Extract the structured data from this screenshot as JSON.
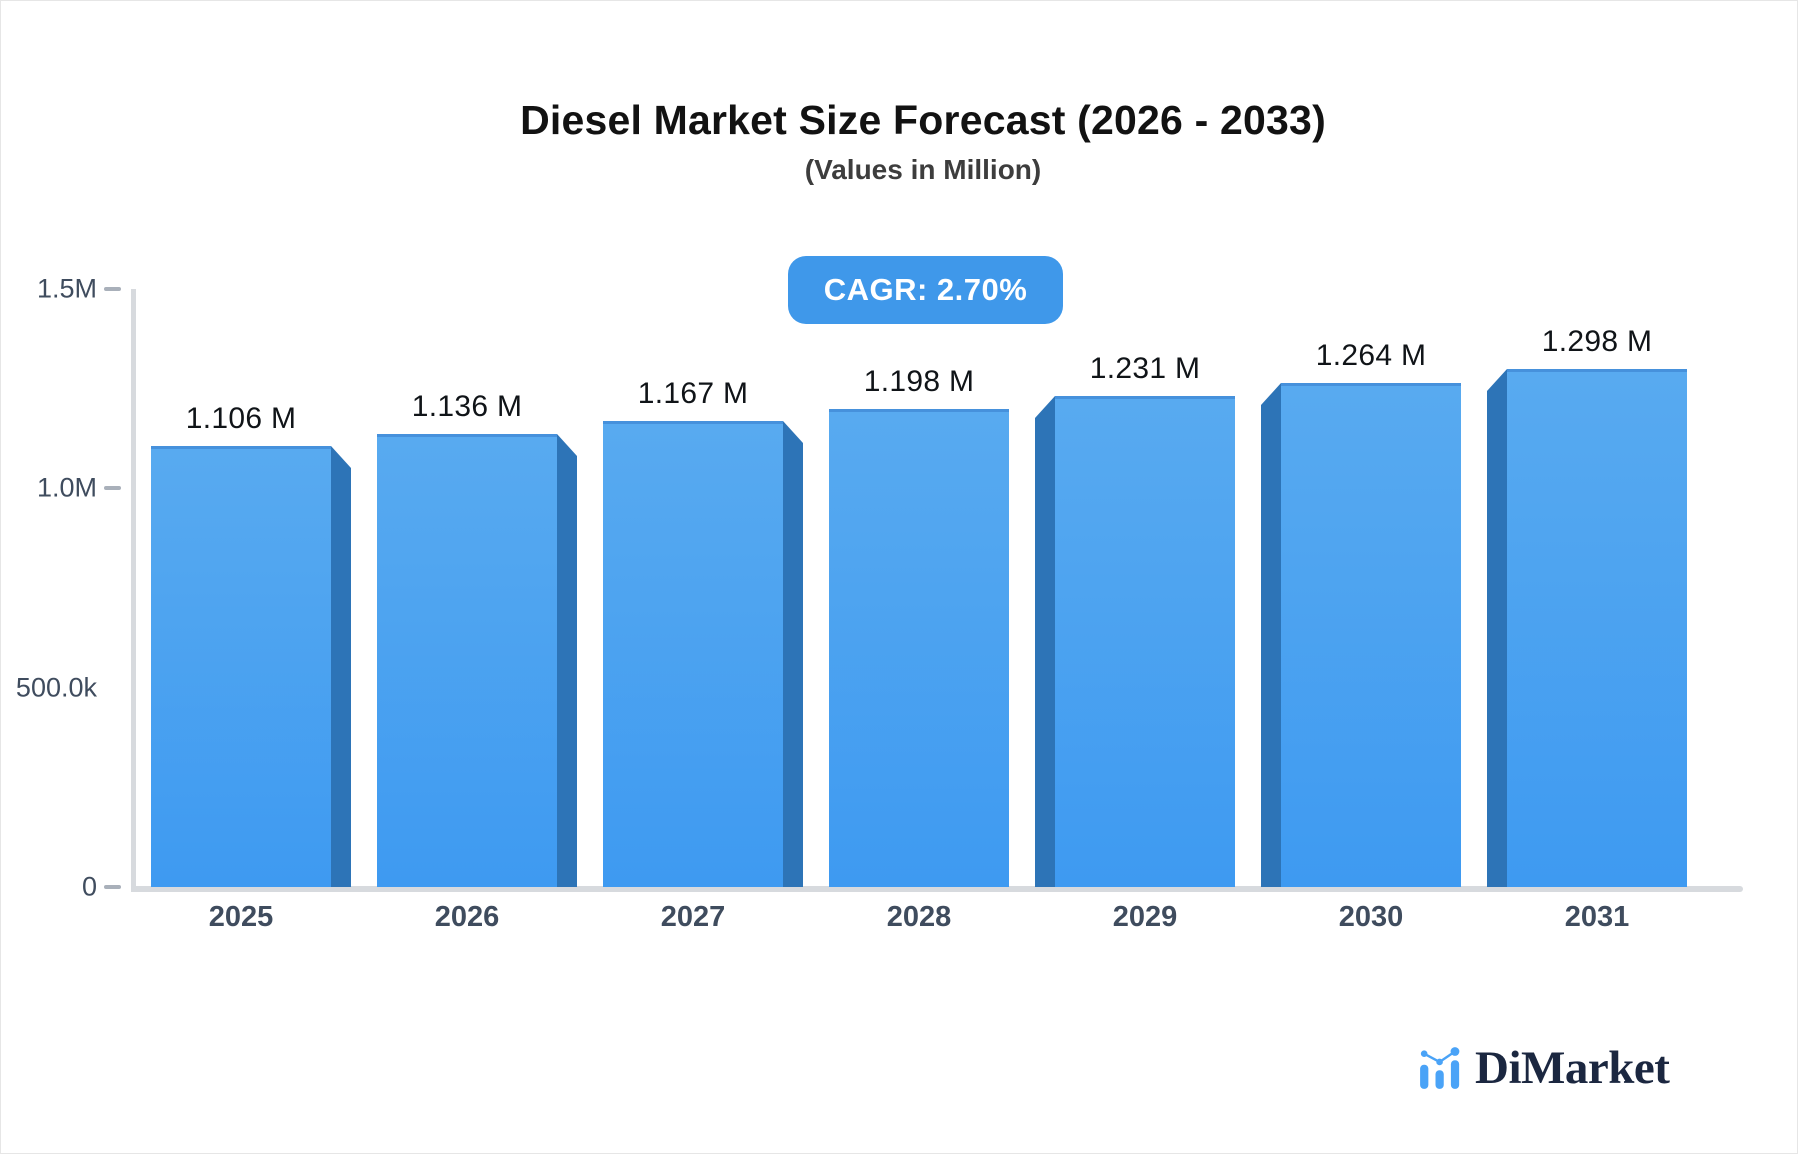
{
  "header": {
    "title": "Diesel Market Size Forecast (2026 - 2033)",
    "subtitle": "(Values in Million)",
    "cagr_label": "CAGR: 2.70%"
  },
  "chart_data": {
    "type": "bar",
    "title": "Diesel Market Size Forecast (2026 - 2033)",
    "subtitle": "(Values in Million)",
    "unit": "Million",
    "cagr_percent": 2.7,
    "categories": [
      "2025",
      "2026",
      "2027",
      "2028",
      "2029",
      "2030",
      "2031"
    ],
    "values": [
      1.106,
      1.136,
      1.167,
      1.198,
      1.231,
      1.264,
      1.298
    ],
    "value_labels": [
      "1.106 M",
      "1.136 M",
      "1.167 M",
      "1.198 M",
      "1.231 M",
      "1.264 M",
      "1.298 M"
    ],
    "y_ticks": [
      {
        "label": "1.5M",
        "value": 1.5,
        "tick": true
      },
      {
        "label": "1.0M",
        "value": 1.0,
        "tick": true
      },
      {
        "label": "500.0k",
        "value": 0.5,
        "tick": false
      },
      {
        "label": "0",
        "value": 0.0,
        "tick": true
      }
    ],
    "ylim": [
      0,
      1.5
    ],
    "grid": false,
    "legend": null
  },
  "colors": {
    "bar_face_top": "#58aaf0",
    "bar_face_bottom": "#3e9af1",
    "bar_face_edge": "#4691dc",
    "bar_side": "#2d74b7",
    "badge_bg": "#3f98ea",
    "badge_text": "#ffffff",
    "axis_line": "#d7dade",
    "tick": "#a9b0ba",
    "axis_text": "#3f4c5e",
    "title_text": "#121212",
    "subtitle_text": "#3d3d3d",
    "value_text": "#101418",
    "logo_navy": "#1b2740",
    "logo_blue": "#4aa3f7"
  },
  "logo": {
    "text": "DiMarket"
  }
}
